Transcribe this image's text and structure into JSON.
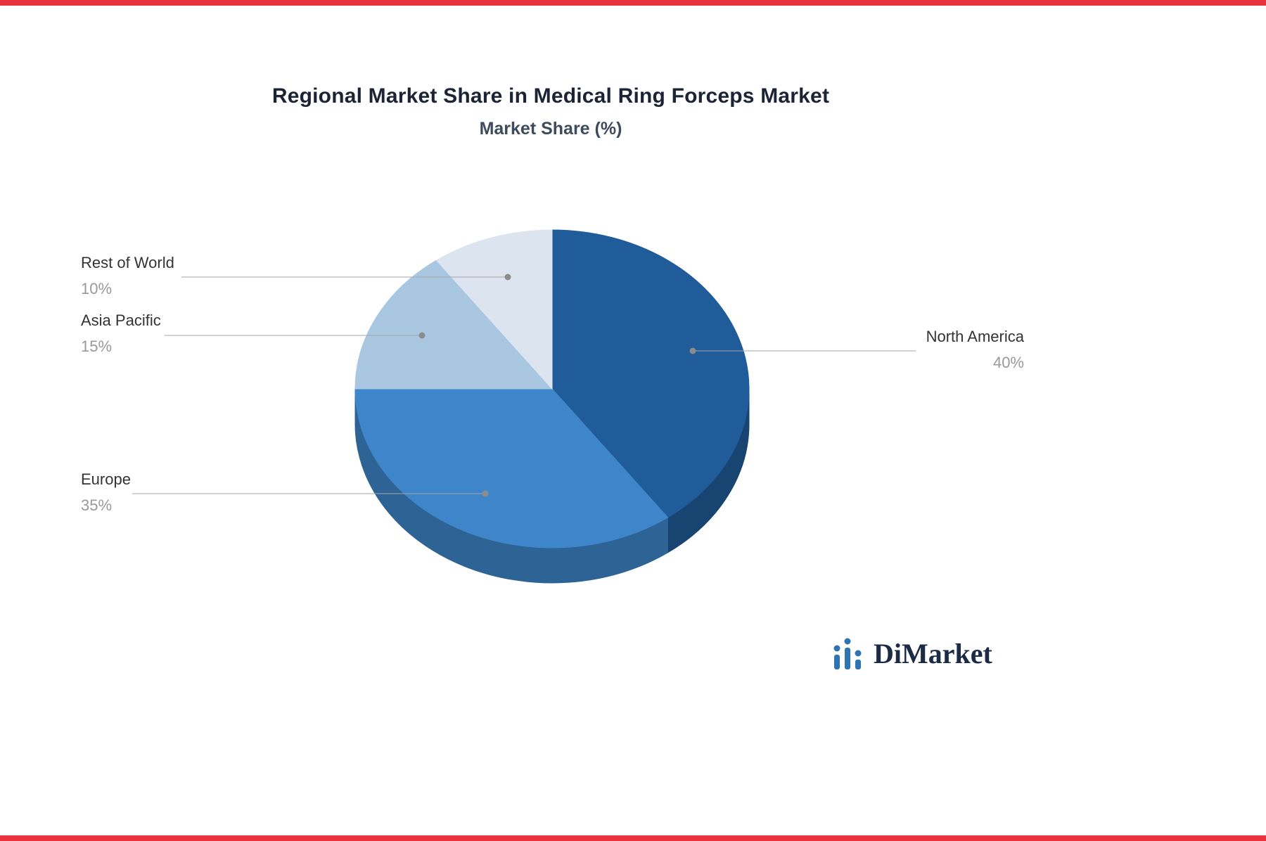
{
  "page": {
    "accent_color": "#e8323e",
    "title": "Regional Market Share in Medical Ring Forceps Market",
    "subtitle": "Market Share (%)"
  },
  "chart_data": {
    "type": "pie",
    "style": "3d",
    "title": "Regional Market Share in Medical Ring Forceps Market",
    "subtitle": "Market Share (%)",
    "unit": "%",
    "start_angle": "top",
    "direction": "clockwise",
    "slices": [
      {
        "label": "North America",
        "value": 40,
        "display": "40%",
        "color": "#1f5c99"
      },
      {
        "label": "Europe",
        "value": 35,
        "display": "35%",
        "color": "#3e86c9"
      },
      {
        "label": "Asia Pacific",
        "value": 15,
        "display": "15%",
        "color": "#a9c7e1"
      },
      {
        "label": "Rest of World",
        "value": 10,
        "display": "10%",
        "color": "#dce4ef"
      }
    ],
    "legend": "none",
    "labels_position": "outside-with-leader-lines",
    "leader_line_color": "#a6a6a6",
    "leader_dot_color": "#8c8c8c",
    "label_color": "#333333",
    "value_color": "#999999"
  },
  "logo": {
    "text": "DiMarket",
    "icon": "bar-chart-logo-icon",
    "icon_color": "#2e74b5",
    "text_color": "#1b2b45"
  }
}
